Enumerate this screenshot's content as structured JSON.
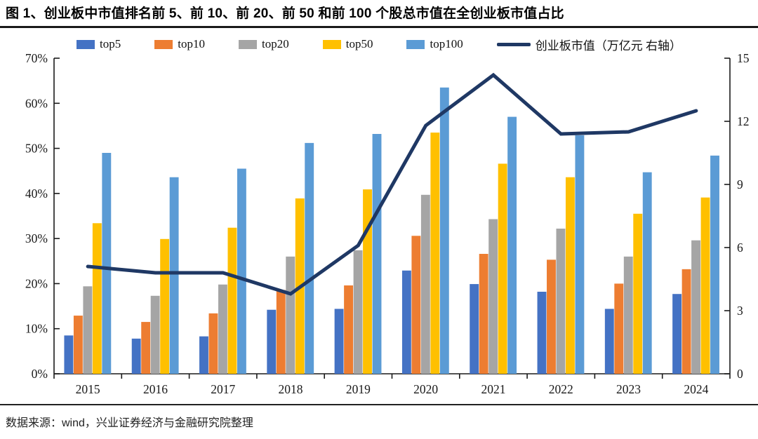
{
  "title": "图 1、创业板中市值排名前 5、前 10、前 20、前 50 和前 100 个股总市值在全创业板市值占比",
  "source": "数据来源：wind，兴业证券经济与金融研究院整理",
  "colors": {
    "top5": "#4472C4",
    "top10": "#ED7D31",
    "top20": "#A5A5A5",
    "top50": "#FFC000",
    "top100": "#5B9BD5",
    "line": "#1F3864",
    "axis": "#1a1a1a"
  },
  "chart_data": {
    "type": "bar",
    "title": "创业板中市值排名前5、前10、前20、前50和前100个股总市值在全创业板市值占比",
    "categories": [
      "2015",
      "2016",
      "2017",
      "2018",
      "2019",
      "2020",
      "2021",
      "2022",
      "2023",
      "2024"
    ],
    "series": [
      {
        "name": "top5",
        "type": "bar",
        "axis": "left",
        "color": "#4472C4",
        "values": [
          8.5,
          7.8,
          8.3,
          14.2,
          14.4,
          22.9,
          19.9,
          18.2,
          14.4,
          17.7
        ]
      },
      {
        "name": "top10",
        "type": "bar",
        "axis": "left",
        "color": "#ED7D31",
        "values": [
          12.9,
          11.5,
          13.4,
          18.6,
          19.6,
          30.6,
          26.6,
          25.3,
          20.0,
          23.2
        ]
      },
      {
        "name": "top20",
        "type": "bar",
        "axis": "left",
        "color": "#A5A5A5",
        "values": [
          19.4,
          17.3,
          19.8,
          26.0,
          27.4,
          39.7,
          34.3,
          32.2,
          26.0,
          29.6
        ]
      },
      {
        "name": "top50",
        "type": "bar",
        "axis": "left",
        "color": "#FFC000",
        "values": [
          33.4,
          29.9,
          32.4,
          38.9,
          40.9,
          53.5,
          46.6,
          43.6,
          35.5,
          39.1
        ]
      },
      {
        "name": "top100",
        "type": "bar",
        "axis": "left",
        "color": "#5B9BD5",
        "values": [
          49.0,
          43.6,
          45.5,
          51.2,
          53.2,
          63.5,
          57.0,
          52.9,
          44.7,
          48.4
        ]
      },
      {
        "name": "创业板市值（万亿元 右轴）",
        "type": "line",
        "axis": "right",
        "color": "#1F3864",
        "values": [
          5.1,
          4.8,
          4.8,
          3.8,
          6.1,
          11.8,
          14.2,
          11.4,
          11.5,
          12.5
        ]
      }
    ],
    "left_axis": {
      "min": 0,
      "max": 70,
      "tick_labels": [
        "0%",
        "10%",
        "20%",
        "30%",
        "40%",
        "50%",
        "60%",
        "70%"
      ],
      "unit": "%"
    },
    "right_axis": {
      "min": 0,
      "max": 15,
      "tick_labels": [
        "0",
        "3",
        "6",
        "9",
        "12",
        "15"
      ],
      "unit": "万亿元"
    },
    "grid": false,
    "legend_position": "top"
  }
}
